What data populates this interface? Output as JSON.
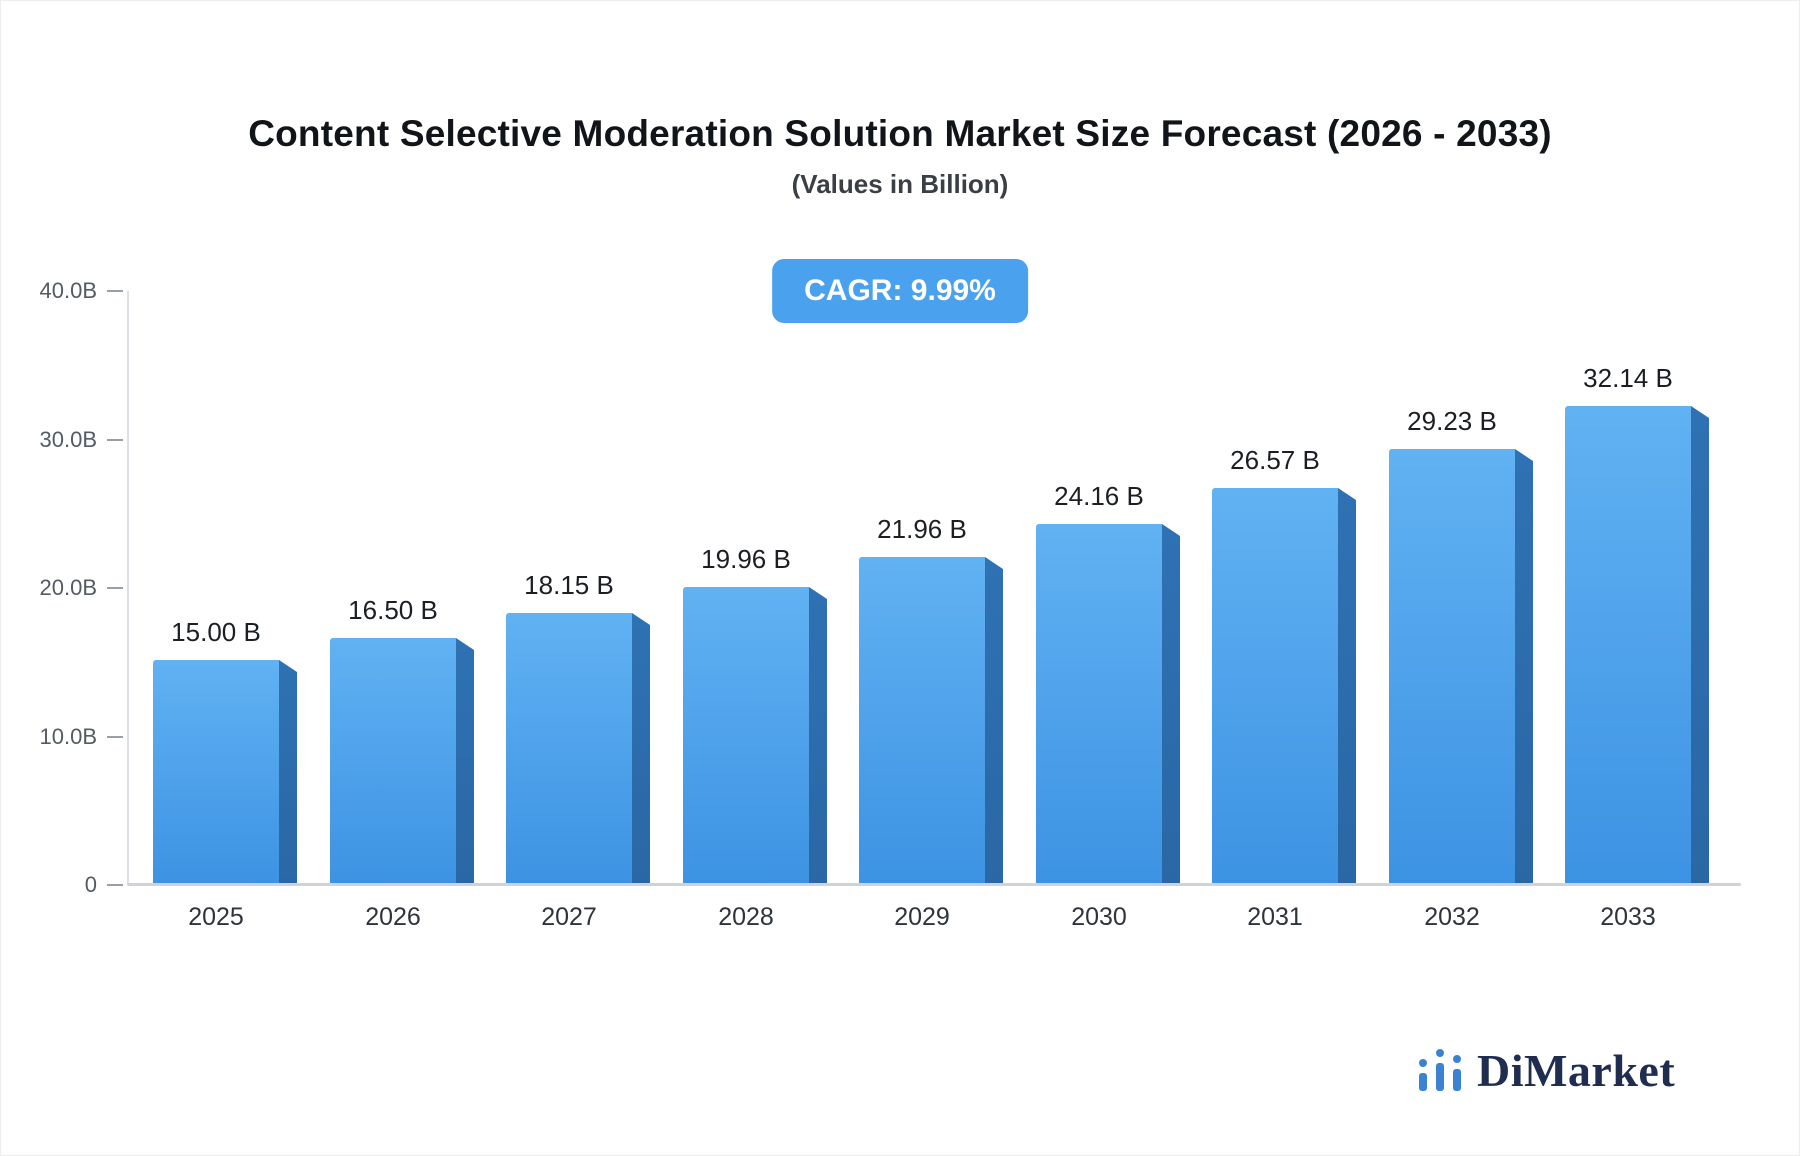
{
  "chart_data": {
    "type": "bar",
    "title": "Content Selective Moderation Solution Market Size Forecast (2026 - 2033)",
    "subtitle": "(Values in Billion)",
    "badge": "CAGR: 9.99%",
    "categories": [
      "2025",
      "2026",
      "2027",
      "2028",
      "2029",
      "2030",
      "2031",
      "2032",
      "2033"
    ],
    "values": [
      15.0,
      16.5,
      18.15,
      19.96,
      21.96,
      24.16,
      26.57,
      29.23,
      32.14
    ],
    "value_labels": [
      "15.00 B",
      "16.50 B",
      "18.15 B",
      "19.96 B",
      "21.96 B",
      "24.16 B",
      "26.57 B",
      "29.23 B",
      "32.14 B"
    ],
    "xlabel": "",
    "ylabel": "",
    "ylim": [
      0,
      40
    ],
    "yticks": [
      {
        "label": "40.0B",
        "value": 40
      },
      {
        "label": "30.0B",
        "value": 30
      },
      {
        "label": "20.0B",
        "value": 20
      },
      {
        "label": "10.0B",
        "value": 10
      },
      {
        "label": "0",
        "value": 0
      }
    ],
    "grid": false,
    "legend": false,
    "colors": {
      "bar_front_top": "#61b2f3",
      "bar_front_bottom": "#3d93e3",
      "bar_side": "#2e72b4",
      "bar_side_bottom": "#2a67a5",
      "badge_bg": "#4aa2ee",
      "logo_blue": "#3b82d0",
      "logo_navy": "#1f2d50"
    }
  },
  "branding": {
    "logo_text": "DiMarket"
  }
}
